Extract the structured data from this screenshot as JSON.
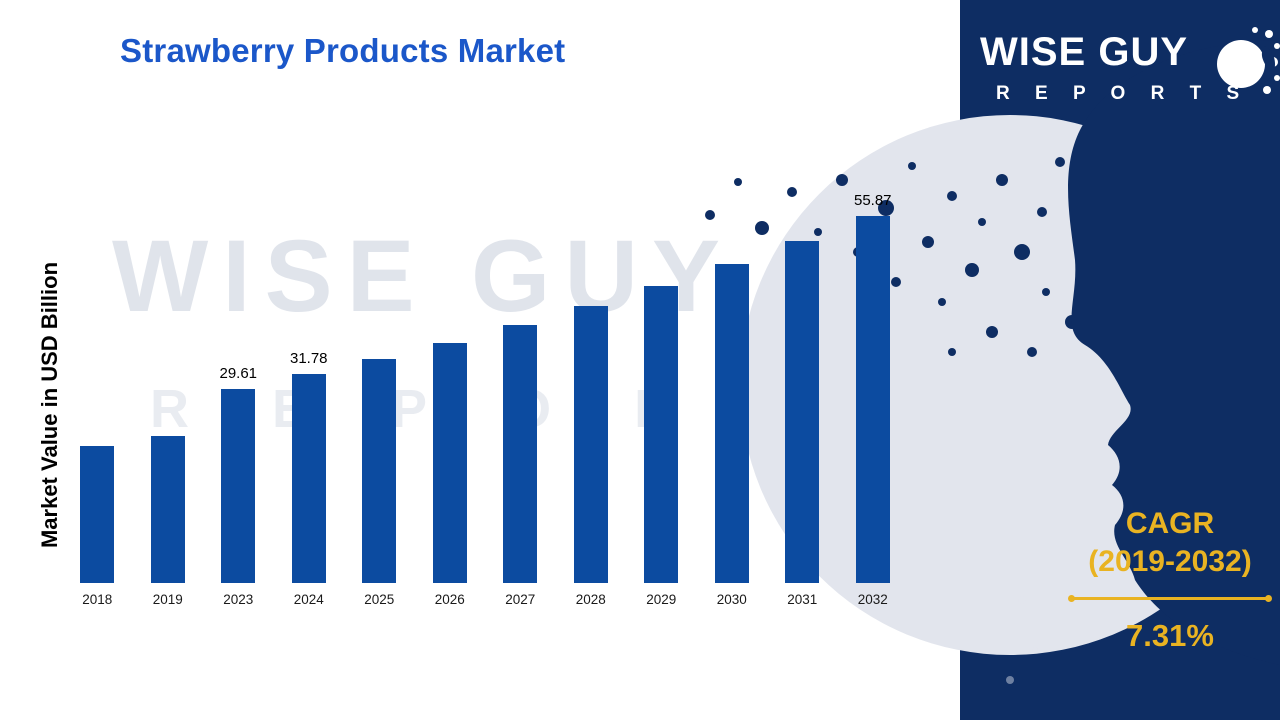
{
  "chart_data": {
    "type": "bar",
    "title": "Strawberry Products Market",
    "ylabel": "Market Value in USD Billion",
    "xlabel": "",
    "categories": [
      "2018",
      "2019",
      "2023",
      "2024",
      "2025",
      "2026",
      "2027",
      "2028",
      "2029",
      "2030",
      "2031",
      "2032"
    ],
    "values": [
      20.8,
      22.32,
      29.61,
      31.78,
      34.1,
      36.6,
      39.27,
      42.14,
      45.22,
      48.53,
      52.07,
      55.87
    ],
    "bar_labels": [
      "",
      "",
      "29.61",
      "31.78",
      "",
      "",
      "",
      "",
      "",
      "",
      "",
      "55.87"
    ],
    "ylim": [
      0,
      60
    ],
    "grid": false,
    "legend": "none",
    "bar_color": "#0c4ba0"
  },
  "watermark": {
    "line1": "WISE GUY",
    "line2": "R E P O R T S"
  },
  "brand": {
    "logo_line1": "WISE GUY",
    "logo_line2": "R E P O R T S",
    "cagr_label": "CAGR",
    "cagr_period": "(2019-2032)",
    "cagr_value": "7.31%",
    "panel_color": "#0e2d63",
    "accent_color": "#e9b322"
  }
}
